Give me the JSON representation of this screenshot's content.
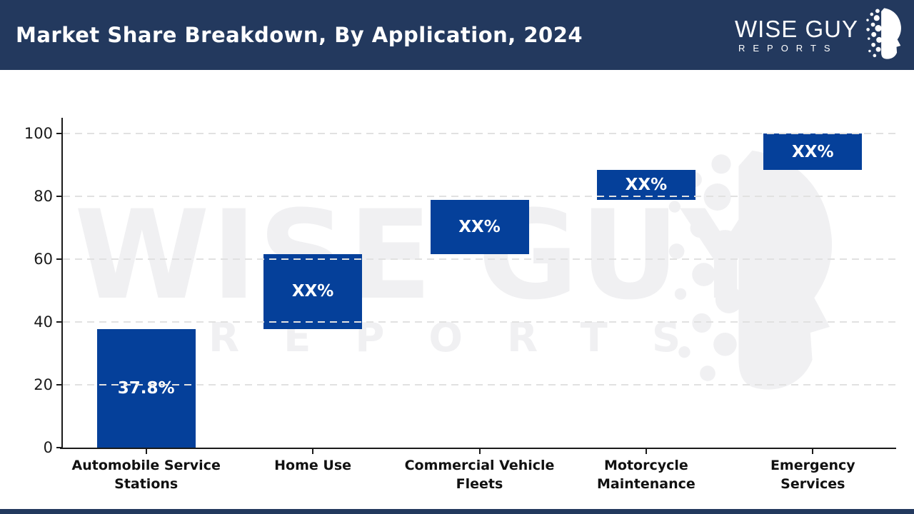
{
  "header": {
    "title": "Market Share Breakdown, By Application, 2024",
    "logo": {
      "line1": "WISE GUY",
      "line2": "REPORTS"
    }
  },
  "watermark": {
    "line1": "WISE GUY",
    "line2": "REPORTS"
  },
  "chart_data": {
    "type": "bar",
    "subtype": "floating-waterfall",
    "title": "Market Share Breakdown, By Application, 2024",
    "categories": [
      "Automobile Service Stations",
      "Home Use",
      "Commercial Vehicle Fleets",
      "Motorcycle Maintenance",
      "Emergency Services"
    ],
    "series": [
      {
        "name": "Market share (%)",
        "segments": [
          {
            "start": 0,
            "end": 37.8,
            "label": "37.8%"
          },
          {
            "start": 37.8,
            "end": 61.6,
            "label": "XX%"
          },
          {
            "start": 61.6,
            "end": 78.9,
            "label": "XX%"
          },
          {
            "start": 78.9,
            "end": 88.3,
            "label": "XX%"
          },
          {
            "start": 88.3,
            "end": 100,
            "label": "XX%"
          }
        ]
      }
    ],
    "xlabel": "",
    "ylabel": "",
    "ylim": [
      0,
      100
    ],
    "yticks": [
      0,
      20,
      40,
      60,
      80,
      100
    ],
    "grid": "horizontal dashed, drawn over bars",
    "legend": false,
    "bar_color": "#05409A",
    "bar_label_color": "#FFFFFF"
  },
  "colors": {
    "header_bg": "#23395E",
    "footer_bg": "#23395E",
    "bar": "#05409A",
    "grid": "#E1E1E1",
    "axis": "#1A1A1A",
    "watermark": "#F0F0F2",
    "page_bg": "#FFFFFF"
  }
}
